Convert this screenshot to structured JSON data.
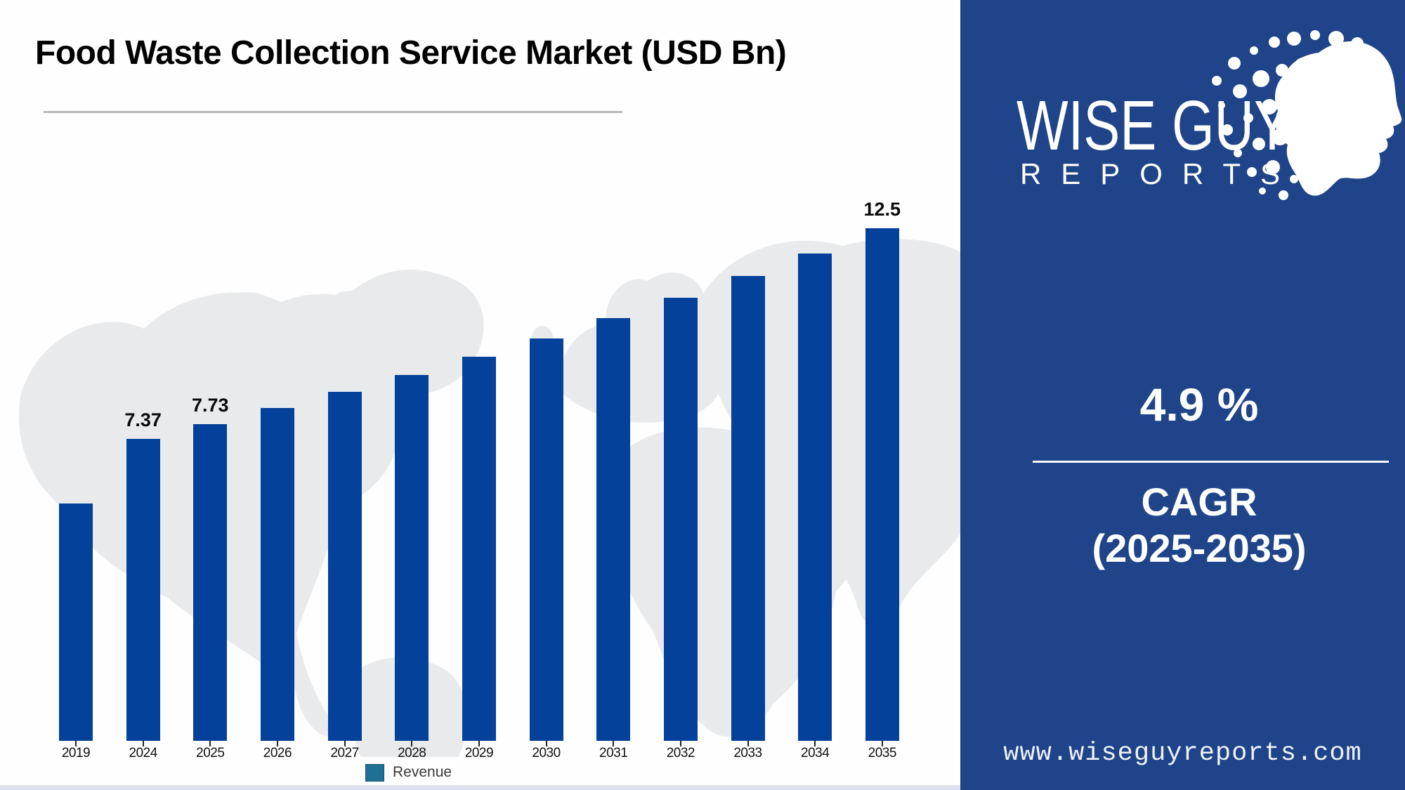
{
  "title": "Food Waste Collection Service Market (USD Bn)",
  "chart_data": {
    "type": "bar",
    "title": "Food Waste Collection Service Market (USD Bn)",
    "xlabel": "",
    "ylabel": "",
    "categories": [
      "2019",
      "2024",
      "2025",
      "2026",
      "2027",
      "2028",
      "2029",
      "2030",
      "2031",
      "2032",
      "2033",
      "2034",
      "2035"
    ],
    "values": [
      5.78,
      7.37,
      7.73,
      8.11,
      8.51,
      8.92,
      9.36,
      9.82,
      10.3,
      10.8,
      11.33,
      11.89,
      12.5
    ],
    "value_labels": {
      "2024": "7.37",
      "2025": "7.73",
      "2035": "12.5"
    },
    "ylim": [
      0,
      13.5
    ],
    "grid": false,
    "legend_entries": [
      "Revenue"
    ],
    "legend_position": "bottom-center",
    "series_name": "Revenue"
  },
  "legend": {
    "label": "Revenue",
    "swatch_color": "#1e7095"
  },
  "colors": {
    "bar": "#04419b",
    "panel_background": "#1f4489",
    "map_fill": "#e8eaec",
    "title_text": "#000000",
    "accent_strip": "#dde3ee"
  },
  "sidebar": {
    "brand_line1": "WISE GUY",
    "brand_line2": "REPORTS",
    "cagr_value": "4.9 %",
    "cagr_caption_line1": "CAGR",
    "cagr_caption_line2": "(2025-2035)",
    "website": "www.wiseguyreports.com"
  }
}
